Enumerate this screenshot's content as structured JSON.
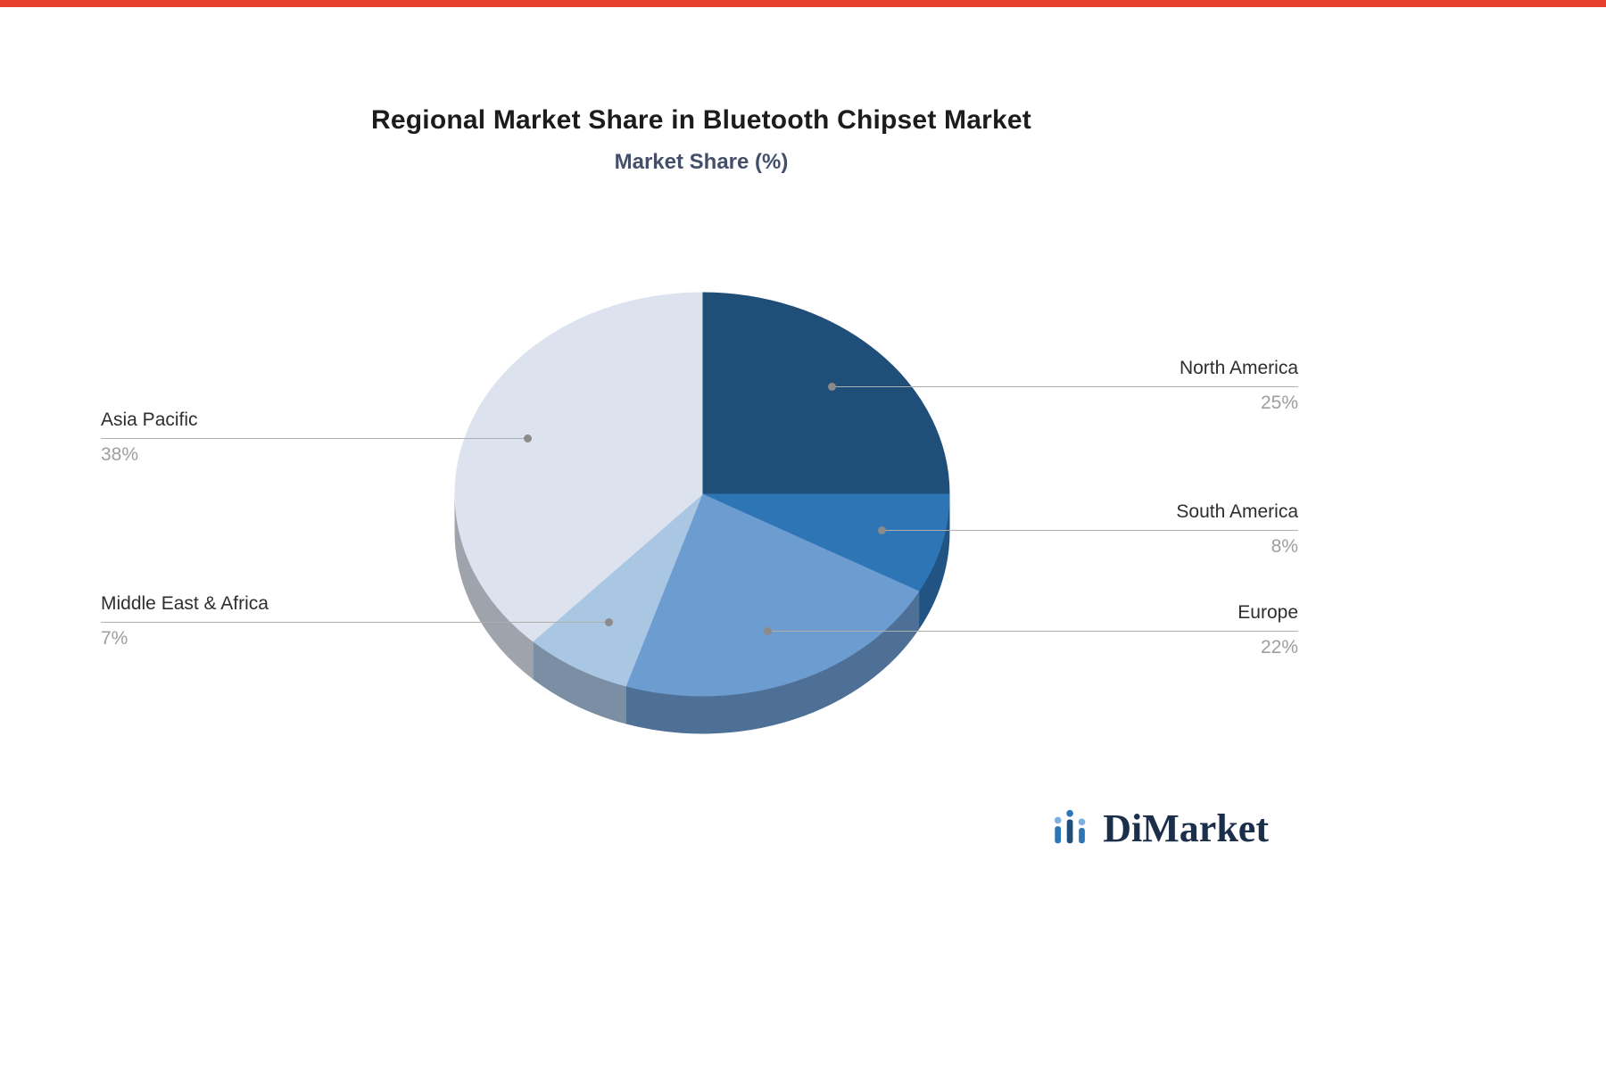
{
  "theme": {
    "top_bar": "#e8402f",
    "accent_blue": "#2e75b6",
    "logo_navy": "#1b2f4b",
    "label_gray": "#9e9e9e",
    "line_gray": "#aeaeae"
  },
  "chart_data": {
    "type": "pie",
    "title": "Regional Market Share in Bluetooth Chipset Market",
    "subtitle": "Market Share (%)",
    "unit": "%",
    "start_angle_deg": -90,
    "direction": "clockwise",
    "legend": "none",
    "labels_style": "callout-leader-lines",
    "effect": "3d-depth",
    "slices": [
      {
        "name": "North America",
        "value": 25,
        "value_label": "25%",
        "color": "#1f4e79"
      },
      {
        "name": "South America",
        "value": 8,
        "value_label": "8%",
        "color": "#2e75b6"
      },
      {
        "name": "Europe",
        "value": 22,
        "value_label": "22%",
        "color": "#6d9cd0"
      },
      {
        "name": "Middle East & Africa",
        "value": 7,
        "value_label": "7%",
        "color": "#a9c6e2"
      },
      {
        "name": "Asia Pacific",
        "value": 38,
        "value_label": "38%",
        "color": "#dde3ee"
      }
    ]
  },
  "branding": {
    "logo_text": "DiMarket",
    "logo_icon": "bar-chart-dots-icon"
  }
}
